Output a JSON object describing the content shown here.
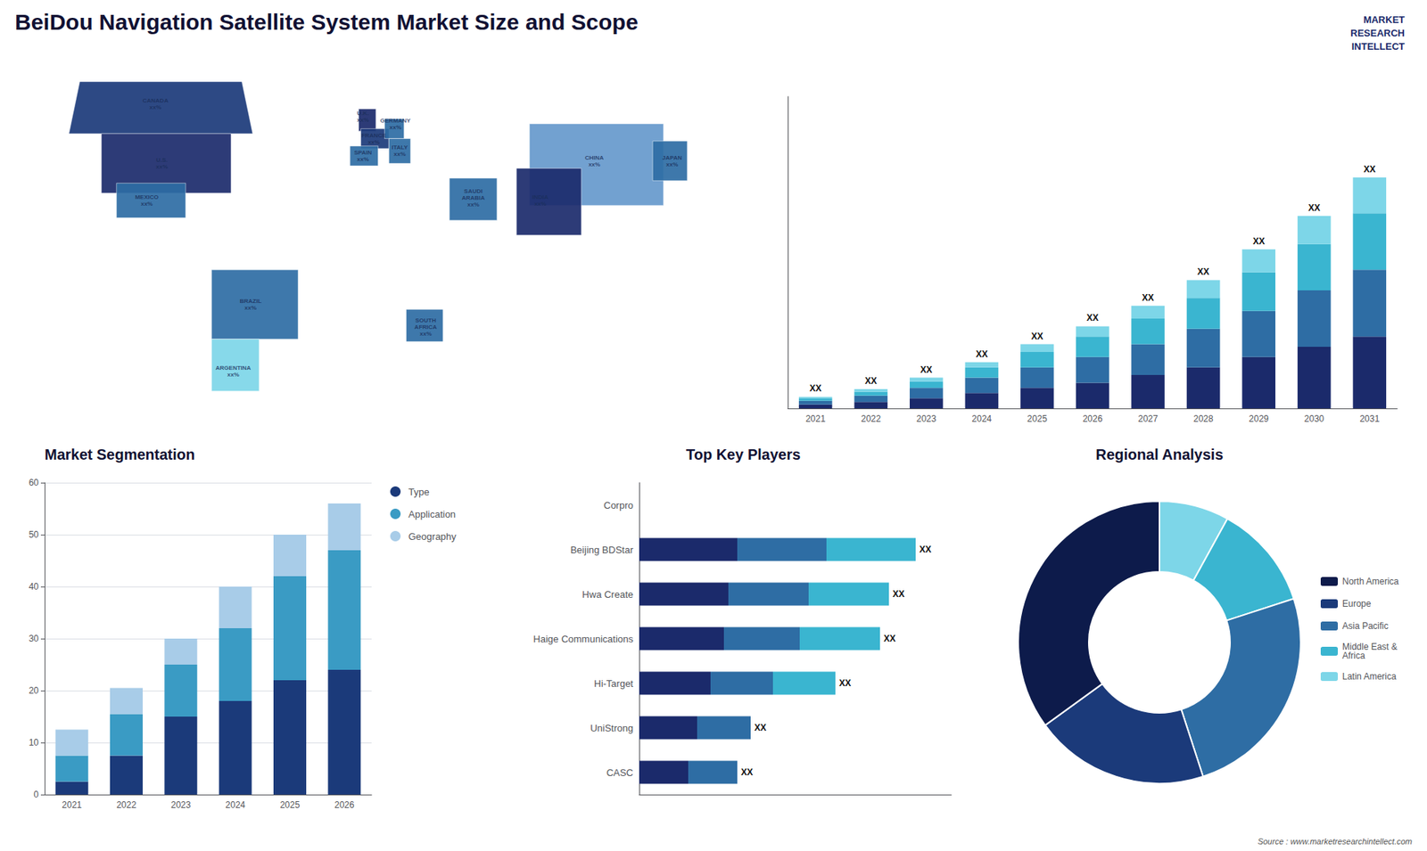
{
  "chart_data": [
    {
      "type": "map",
      "title": "BeiDou Navigation Satellite System Market Size and Scope",
      "xlim": [
        -165,
        165
      ],
      "ylim": [
        -62,
        82
      ],
      "tick_labels": false,
      "regions": [
        {
          "color": "#1b3a7a",
          "xy": [
            [
              -140,
              49
            ],
            [
              -135,
              70
            ],
            [
              -60,
              70
            ],
            [
              -55,
              49
            ]
          ]
        },
        {
          "color": "#1b2a6b",
          "xy": [
            [
              -125,
              25
            ],
            [
              -125,
              49
            ],
            [
              -65,
              49
            ],
            [
              -65,
              25
            ]
          ]
        },
        {
          "color": "#2e6da4",
          "xy": [
            [
              -118,
              15
            ],
            [
              -118,
              29
            ],
            [
              -86,
              29
            ],
            [
              -86,
              15
            ]
          ]
        },
        {
          "color": "#2e6da4",
          "xy": [
            [
              -74,
              -6
            ],
            [
              -74,
              -34
            ],
            [
              -34,
              -34
            ],
            [
              -34,
              -6
            ]
          ]
        },
        {
          "color": "#7dd6e8",
          "xy": [
            [
              -74,
              -34
            ],
            [
              -74,
              -55
            ],
            [
              -52,
              -55
            ],
            [
              -52,
              -34
            ]
          ]
        },
        {
          "color": "#1b2a6b",
          "xy": [
            [
              -6,
              50
            ],
            [
              -6,
              59
            ],
            [
              2,
              59
            ],
            [
              2,
              50
            ]
          ]
        },
        {
          "color": "#1b3a7a",
          "xy": [
            [
              -5,
              43
            ],
            [
              -5,
              51
            ],
            [
              8,
              51
            ],
            [
              8,
              43
            ]
          ]
        },
        {
          "color": "#2e6da4",
          "xy": [
            [
              -10,
              36
            ],
            [
              -10,
              44
            ],
            [
              3,
              44
            ],
            [
              3,
              36
            ]
          ]
        },
        {
          "color": "#2e6da4",
          "xy": [
            [
              6,
              47
            ],
            [
              6,
              55
            ],
            [
              15,
              55
            ],
            [
              15,
              47
            ]
          ]
        },
        {
          "color": "#2e6da4",
          "xy": [
            [
              8,
              37
            ],
            [
              8,
              47
            ],
            [
              18,
              47
            ],
            [
              18,
              37
            ]
          ]
        },
        {
          "color": "#2e6da4",
          "xy": [
            [
              36,
              14
            ],
            [
              36,
              31
            ],
            [
              58,
              31
            ],
            [
              58,
              14
            ]
          ]
        },
        {
          "color": "#2e6da4",
          "xy": [
            [
              16,
              -35
            ],
            [
              16,
              -22
            ],
            [
              33,
              -22
            ],
            [
              33,
              -35
            ]
          ]
        },
        {
          "color": "#6699cc",
          "xy": [
            [
              73,
              20
            ],
            [
              73,
              53
            ],
            [
              135,
              53
            ],
            [
              135,
              20
            ]
          ]
        },
        {
          "color": "#1b2a6b",
          "xy": [
            [
              67,
              8
            ],
            [
              67,
              35
            ],
            [
              97,
              35
            ],
            [
              97,
              8
            ]
          ]
        },
        {
          "color": "#2e6da4",
          "xy": [
            [
              130,
              30
            ],
            [
              130,
              46
            ],
            [
              146,
              46
            ],
            [
              146,
              30
            ]
          ]
        }
      ],
      "annotations": [
        {
          "text": "CANADA\nxx%",
          "x": -100,
          "y": 61
        },
        {
          "text": "U.S.\nxx%",
          "x": -97,
          "y": 37
        },
        {
          "text": "MEXICO\nxx%",
          "x": -104,
          "y": 22
        },
        {
          "text": "BRAZIL\nxx%",
          "x": -56,
          "y": -20
        },
        {
          "text": "ARGENTINA\nxx%",
          "x": -64,
          "y": -47
        },
        {
          "text": "U.K.\nxx%",
          "x": -4,
          "y": 56
        },
        {
          "text": "FRANCE\nxx%",
          "x": 1,
          "y": 47
        },
        {
          "text": "SPAIN\nxx%",
          "x": -4,
          "y": 40
        },
        {
          "text": "GERMANY\nxx%",
          "x": 11,
          "y": 53
        },
        {
          "text": "ITALY\nxx%",
          "x": 13,
          "y": 42
        },
        {
          "text": "SAUDI\nARABIA\nxx%",
          "x": 47,
          "y": 23
        },
        {
          "text": "SOUTH\nAFRICA\nxx%",
          "x": 25,
          "y": -29
        },
        {
          "text": "CHINA\nxx%",
          "x": 103,
          "y": 38
        },
        {
          "text": "INDIA\nxx%",
          "x": 78,
          "y": 22
        },
        {
          "text": "JAPAN\nxx%",
          "x": 139,
          "y": 38
        }
      ]
    },
    {
      "type": "bar",
      "stacked": true,
      "categories": [
        "2021",
        "2022",
        "2023",
        "2024",
        "2025",
        "2026",
        "2027",
        "2028",
        "2029",
        "2030",
        "2031"
      ],
      "series": [
        {
          "color": "#1b2a6b",
          "values": [
            1.5,
            2.5,
            4,
            6,
            8,
            10,
            13,
            16,
            20,
            24,
            28
          ]
        },
        {
          "color": "#2e6da4",
          "values": [
            1.5,
            2.5,
            4,
            6,
            8,
            10,
            12,
            15,
            18,
            22,
            26
          ]
        },
        {
          "color": "#3ab5d0",
          "values": [
            1.0,
            1.5,
            2.5,
            4,
            6,
            8,
            10,
            12,
            15,
            18,
            22
          ]
        },
        {
          "color": "#7dd6e8",
          "values": [
            0.5,
            1.0,
            1.5,
            2,
            3,
            4,
            5,
            7,
            9,
            11,
            14
          ],
          "value_labels": [
            "XX",
            "XX",
            "XX",
            "XX",
            "XX",
            "XX",
            "XX",
            "XX",
            "XX",
            "XX",
            "XX"
          ]
        }
      ],
      "ylim": [
        0,
        121.5
      ],
      "tick_labels": "x",
      "grid": false,
      "annotations": [
        "MARKET",
        "RESEARCH",
        "INTELLECT"
      ]
    },
    {
      "type": "bar",
      "title": "Market Segmentation",
      "stacked": true,
      "categories": [
        "2021",
        "2022",
        "2023",
        "2024",
        "2025",
        "2026"
      ],
      "series": [
        {
          "name": "Type",
          "color": "#1b3a7a",
          "values": [
            2.5,
            7.5,
            15,
            18,
            22,
            24
          ]
        },
        {
          "name": "Application",
          "color": "#3a9bc4",
          "values": [
            5.0,
            8.0,
            10,
            14,
            20,
            23
          ]
        },
        {
          "name": "Geography",
          "color": "#a8cce8",
          "values": [
            5.0,
            5.0,
            5,
            8,
            8,
            9
          ]
        }
      ],
      "ylim": [
        0,
        60
      ],
      "yticks": [
        0,
        10,
        20,
        30,
        40,
        50,
        60
      ],
      "grid": true,
      "legend": "right"
    },
    {
      "type": "bar",
      "title": "Top Key Players",
      "orientation": "horizontal",
      "stacked": true,
      "categories": [
        "Corpro",
        "Beijing BDStar",
        "Hwa Create",
        "Haige Communications",
        "Hi-Target",
        "UniStrong",
        "CASC"
      ],
      "series": [
        {
          "color": "#1b2a6b",
          "values": [
            null,
            2.2,
            2.0,
            1.9,
            1.6,
            1.3,
            1.1
          ]
        },
        {
          "color": "#2e6da4",
          "values": [
            null,
            2.0,
            1.8,
            1.7,
            1.4,
            1.2,
            1.1
          ]
        },
        {
          "color": "#3ab5d0",
          "values": [
            null,
            2.0,
            1.8,
            1.8,
            1.4,
            0,
            0
          ],
          "value_labels": [
            null,
            "XX",
            "XX",
            "XX",
            "XX",
            "XX",
            "XX"
          ]
        }
      ],
      "xlim": [
        0,
        7
      ],
      "tick_labels": "y",
      "grid": false
    },
    {
      "type": "donut",
      "title": "Regional Analysis",
      "categories": [
        "Latin America",
        "Middle East &\nAfrica",
        "Asia Pacific",
        "Europe",
        "North America"
      ],
      "values": [
        8,
        12,
        25,
        20,
        35
      ],
      "colors": [
        "#7dd6e8",
        "#3ab5d0",
        "#2e6da4",
        "#1b3a7a",
        "#0d1b4b"
      ],
      "legend": "right",
      "annotations": [
        "Source : www.marketresearchintellect.com"
      ]
    }
  ]
}
